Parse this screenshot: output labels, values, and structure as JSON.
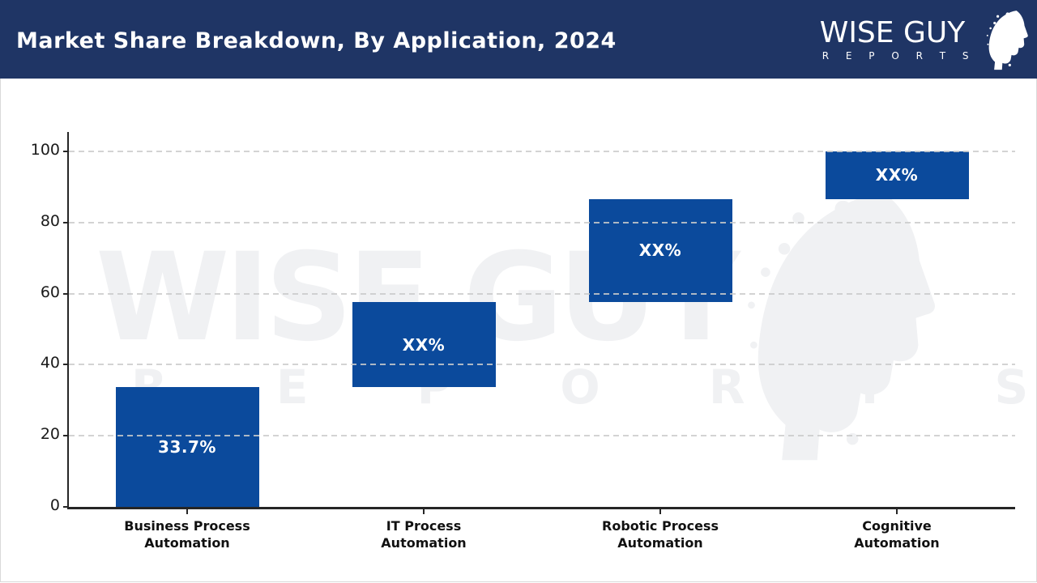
{
  "header": {
    "title": "Market Share Breakdown, By Application, 2024",
    "logo": {
      "line1": "WISE GUY",
      "line2": "R E P O R T S",
      "icon": "dotted-head-profile-icon"
    }
  },
  "watermark": {
    "line1": "WISE GUY",
    "line2": "R E P O R T S",
    "icon": "dotted-head-profile-icon"
  },
  "colors": {
    "header_bg": "#1f3565",
    "bar_fill": "#0b4a9c",
    "bar_label_text": "#ffffff",
    "axis": "#262626",
    "grid": "#cbcbcb",
    "watermark": "#f0f1f3",
    "category_text": "#111111"
  },
  "chart_data": {
    "type": "bar",
    "subtype": "waterfall",
    "title": "Market Share Breakdown, By Application, 2024",
    "xlabel": "",
    "ylabel": "",
    "ylim": [
      0,
      105
    ],
    "y_ticks": [
      0,
      20,
      40,
      60,
      80,
      100
    ],
    "grid": "dashed-horizontal",
    "legend": "none",
    "categories": [
      "Business Process Automation",
      "IT Process Automation",
      "Robotic Process Automation",
      "Cognitive Automation"
    ],
    "segments": [
      {
        "category": "Business Process Automation",
        "label_lines": [
          "Business Process",
          "Automation"
        ],
        "start": 0,
        "end": 33.7,
        "value_label": "33.7%"
      },
      {
        "category": "IT Process Automation",
        "label_lines": [
          "IT Process",
          "Automation"
        ],
        "start": 33.7,
        "end": 57.6,
        "value_label": "XX%"
      },
      {
        "category": "Robotic Process Automation",
        "label_lines": [
          "Robotic Process",
          "Automation"
        ],
        "start": 57.6,
        "end": 86.6,
        "value_label": "XX%"
      },
      {
        "category": "Cognitive Automation",
        "label_lines": [
          "Cognitive",
          "Automation"
        ],
        "start": 86.6,
        "end": 100,
        "value_label": "XX%"
      }
    ]
  }
}
